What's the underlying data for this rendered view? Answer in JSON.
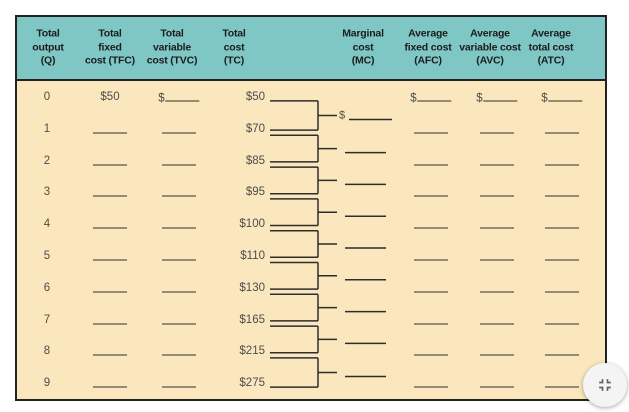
{
  "table": {
    "colors": {
      "header_bg": "#7ec7c5",
      "body_bg": "#fbe7bd",
      "border": "#222222",
      "line": "#2d2d2d",
      "header_text": "#1c1c1c",
      "body_text": "#4d4d4d"
    },
    "headers": [
      {
        "id": "q",
        "lines": [
          "Total",
          "output",
          "(Q)"
        ]
      },
      {
        "id": "tfc",
        "lines": [
          "Total",
          "fixed",
          "cost (TFC)"
        ]
      },
      {
        "id": "tvc",
        "lines": [
          "Total",
          "variable",
          "cost (TVC)"
        ]
      },
      {
        "id": "tc",
        "lines": [
          "Total",
          "cost",
          "(TC)"
        ]
      },
      {
        "id": "mc",
        "lines": [
          "Marginal",
          "cost",
          "(MC)"
        ]
      },
      {
        "id": "afc",
        "lines": [
          "Average",
          "fixed cost",
          "(AFC)"
        ]
      },
      {
        "id": "avc",
        "lines": [
          "Average",
          "variable cost",
          "(AVC)"
        ]
      },
      {
        "id": "atc",
        "lines": [
          "Average",
          "total cost",
          "(ATC)"
        ]
      }
    ],
    "rows": [
      {
        "q": "0",
        "tfc": "$50",
        "tvc": "$_",
        "tc": "$50",
        "afc": "$_",
        "avc": "$_",
        "atc": "$_"
      },
      {
        "q": "1",
        "tfc": "_",
        "tvc": "_",
        "tc": "$70",
        "afc": "_",
        "avc": "_",
        "atc": "_"
      },
      {
        "q": "2",
        "tfc": "_",
        "tvc": "_",
        "tc": "$85",
        "afc": "_",
        "avc": "_",
        "atc": "_"
      },
      {
        "q": "3",
        "tfc": "_",
        "tvc": "_",
        "tc": "$95",
        "afc": "_",
        "avc": "_",
        "atc": "_"
      },
      {
        "q": "4",
        "tfc": "_",
        "tvc": "_",
        "tc": "$100",
        "afc": "_",
        "avc": "_",
        "atc": "_"
      },
      {
        "q": "5",
        "tfc": "_",
        "tvc": "_",
        "tc": "$110",
        "afc": "_",
        "avc": "_",
        "atc": "_"
      },
      {
        "q": "6",
        "tfc": "_",
        "tvc": "_",
        "tc": "$130",
        "afc": "_",
        "avc": "_",
        "atc": "_"
      },
      {
        "q": "7",
        "tfc": "_",
        "tvc": "_",
        "tc": "$165",
        "afc": "_",
        "avc": "_",
        "atc": "_"
      },
      {
        "q": "8",
        "tfc": "_",
        "tvc": "_",
        "tc": "$215",
        "afc": "_",
        "avc": "_",
        "atc": "_"
      },
      {
        "q": "9",
        "tfc": "_",
        "tvc": "_",
        "tc": "$275",
        "afc": "_",
        "avc": "_",
        "atc": "_"
      }
    ],
    "mc_blanks": [
      "$_",
      "_",
      "_",
      "_",
      "_",
      "_",
      "_",
      "_",
      "_"
    ]
  },
  "fab": {
    "icon": "fullscreen-exit",
    "icon_color": "#5f6368"
  }
}
